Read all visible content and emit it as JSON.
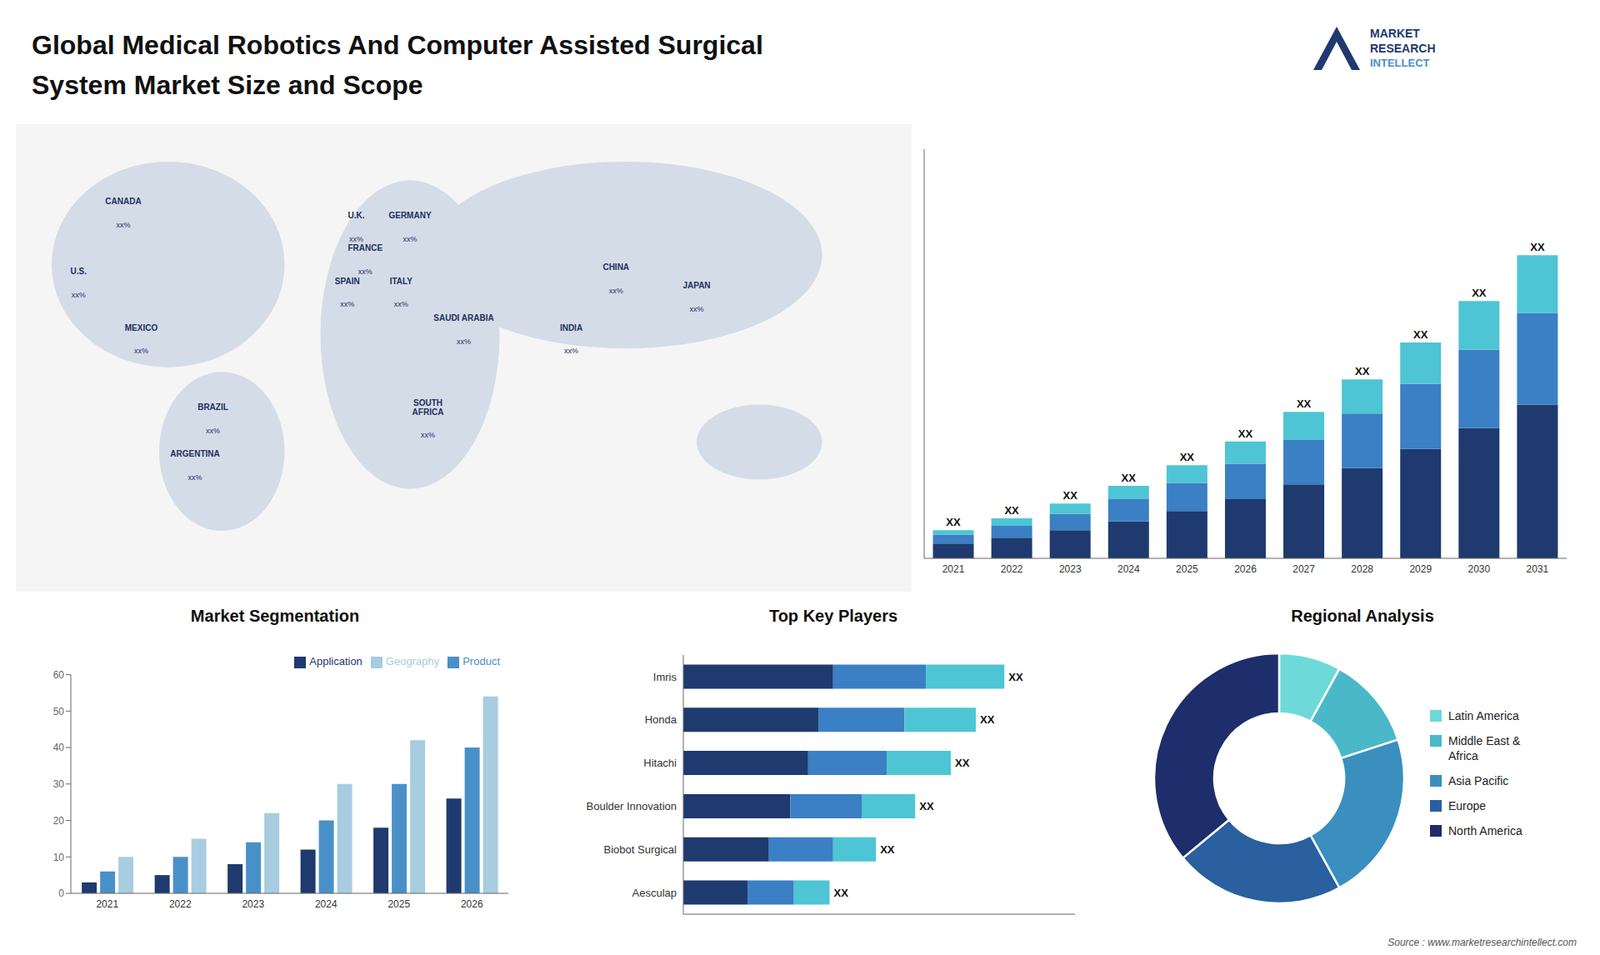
{
  "title": "Global Medical Robotics And Computer Assisted Surgical\nSystem Market Size and Scope",
  "annotations": [
    "MARKET",
    "RESEARCH",
    "INTELLECT",
    "Source : www.marketresearchintellect.com"
  ],
  "chart_data": [
    {
      "type": "map",
      "categories": [
        "CANADA",
        "U.S.",
        "MEXICO",
        "BRAZIL",
        "ARGENTINA",
        "U.K.",
        "FRANCE",
        "SPAIN",
        "GERMANY",
        "ITALY",
        "SAUDI ARABIA",
        "SOUTH\nAFRICA",
        "CHINA",
        "INDIA",
        "JAPAN"
      ],
      "value_labels": [
        "xx%",
        "xx%",
        "xx%",
        "xx%",
        "xx%",
        "xx%",
        "xx%",
        "xx%",
        "xx%",
        "xx%",
        "xx%",
        "xx%",
        "xx%",
        "xx%",
        "xx%"
      ]
    },
    {
      "type": "bar",
      "stacked": true,
      "categories": [
        "2021",
        "2022",
        "2023",
        "2024",
        "2025",
        "2026",
        "2027",
        "2028",
        "2029",
        "2030",
        "2031"
      ],
      "series": [
        {
          "color": "#1e3a6e",
          "values": [
            1.0,
            1.4,
            1.9,
            2.5,
            3.2,
            4.0,
            5.0,
            6.1,
            7.4,
            8.8,
            10.4
          ]
        },
        {
          "color": "#3b7fc4",
          "values": [
            0.6,
            0.8,
            1.1,
            1.5,
            1.9,
            2.4,
            3.0,
            3.7,
            4.4,
            5.3,
            6.2
          ]
        },
        {
          "color": "#4ec5d4",
          "values": [
            0.3,
            0.5,
            0.7,
            0.9,
            1.2,
            1.5,
            1.9,
            2.3,
            2.8,
            3.3,
            3.9
          ],
          "value_labels": [
            "XX",
            "XX",
            "XX",
            "XX",
            "XX",
            "XX",
            "XX",
            "XX",
            "XX",
            "XX",
            "XX"
          ]
        }
      ],
      "ylim": [
        0,
        27.675
      ],
      "tick_labels": "x"
    },
    {
      "type": "bar",
      "title": "Market Segmentation",
      "categories": [
        "2021",
        "2022",
        "2023",
        "2024",
        "2025",
        "2026"
      ],
      "series": [
        {
          "name": "Application",
          "color": "#1e3a6e",
          "values": [
            3,
            5,
            8,
            12,
            18,
            26
          ]
        },
        {
          "name": "Product",
          "color": "#4a90c8",
          "values": [
            6,
            10,
            14,
            20,
            30,
            40
          ]
        },
        {
          "name": "Geography",
          "color": "#a8cce0",
          "values": [
            10,
            15,
            22,
            30,
            42,
            54
          ]
        }
      ],
      "ylim": [
        0,
        60
      ],
      "yticks": [
        0,
        10,
        20,
        30,
        40,
        50,
        60
      ],
      "legend": "upper right"
    },
    {
      "type": "bar",
      "orientation": "horizontal",
      "stacked": true,
      "title": "Top Key Players",
      "categories": [
        "Imris",
        "Honda",
        "Hitachi",
        "Boulder Innovation",
        "Biobot Surgical",
        "Aesculap"
      ],
      "series": [
        {
          "color": "#1e3a6e",
          "values": [
            42,
            38,
            35,
            30,
            24,
            18
          ]
        },
        {
          "color": "#3b7fc4",
          "values": [
            26,
            24,
            22,
            20,
            18,
            13
          ]
        },
        {
          "color": "#4ec5d4",
          "values": [
            22,
            20,
            18,
            15,
            12,
            10
          ],
          "value_labels": [
            "XX",
            "XX",
            "XX",
            "XX",
            "XX",
            "XX"
          ]
        }
      ],
      "xlim": [
        0,
        109.8
      ],
      "tick_labels": "y"
    },
    {
      "type": "pie",
      "title": "Regional Analysis",
      "categories": [
        "Latin America",
        "Middle East &\nAfrica",
        "Asia Pacific",
        "Europe",
        "North America"
      ],
      "values": [
        8,
        12,
        22,
        22,
        36
      ],
      "colors": [
        "#6dd9d9",
        "#4ab8c8",
        "#3a8fbf",
        "#2a5fa0",
        "#1e2d6b"
      ],
      "legend": "right"
    }
  ]
}
